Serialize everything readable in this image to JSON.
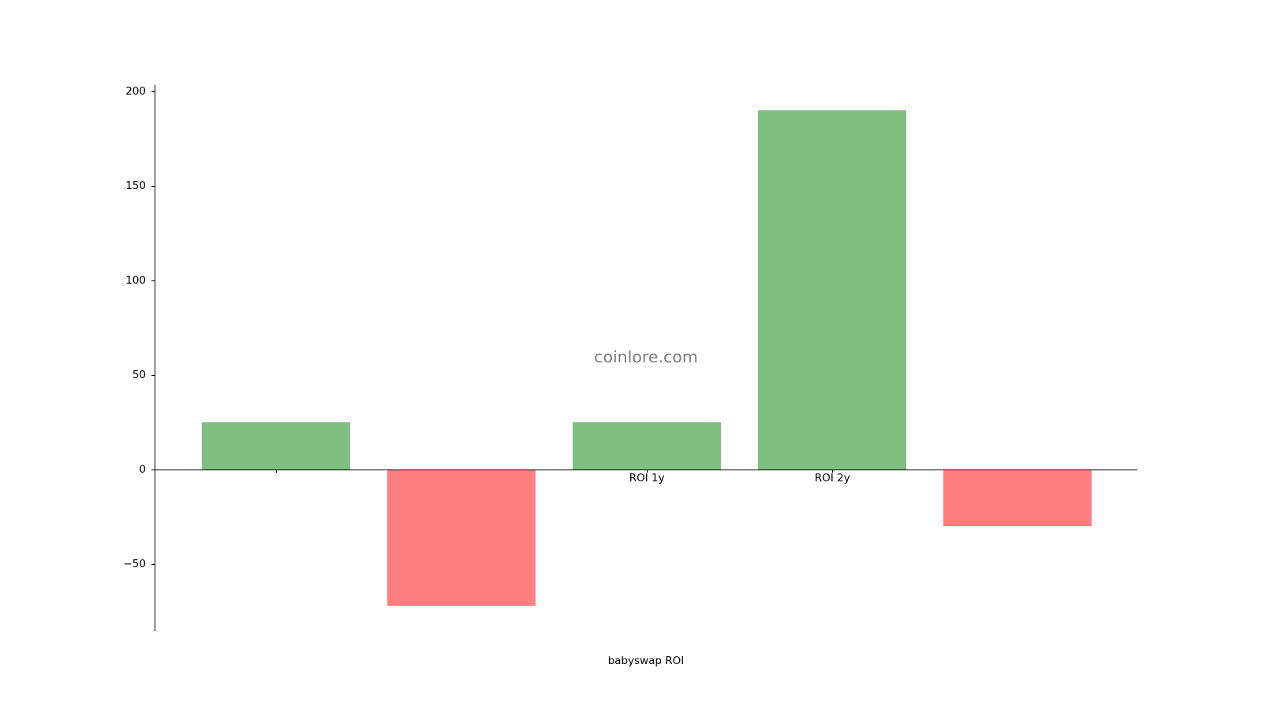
{
  "page": {
    "background": "#ffffff"
  },
  "chart_data": {
    "type": "bar",
    "title": "",
    "xlabel": "babyswap ROI",
    "ylabel": "",
    "categories": [
      "",
      "",
      "ROI 1y",
      "ROI 2y",
      ""
    ],
    "values": [
      25,
      -72,
      25,
      190,
      -30
    ],
    "bar_colors": [
      "#7fbf7f",
      "#ff7f7f",
      "#7fbf7f",
      "#7fbf7f",
      "#ff7f7f"
    ],
    "positive_color": "#7fbf7f",
    "negative_color": "#ff7f7f",
    "yticks": [
      200,
      150,
      100,
      50,
      0,
      -50
    ],
    "ylim": [
      -85.3,
      203.4
    ],
    "grid": false,
    "legend": false,
    "axis_color": "#000000",
    "text_color": "#000000",
    "watermark": {
      "text": "coinlore.com",
      "color": "#7b7b7b"
    }
  }
}
